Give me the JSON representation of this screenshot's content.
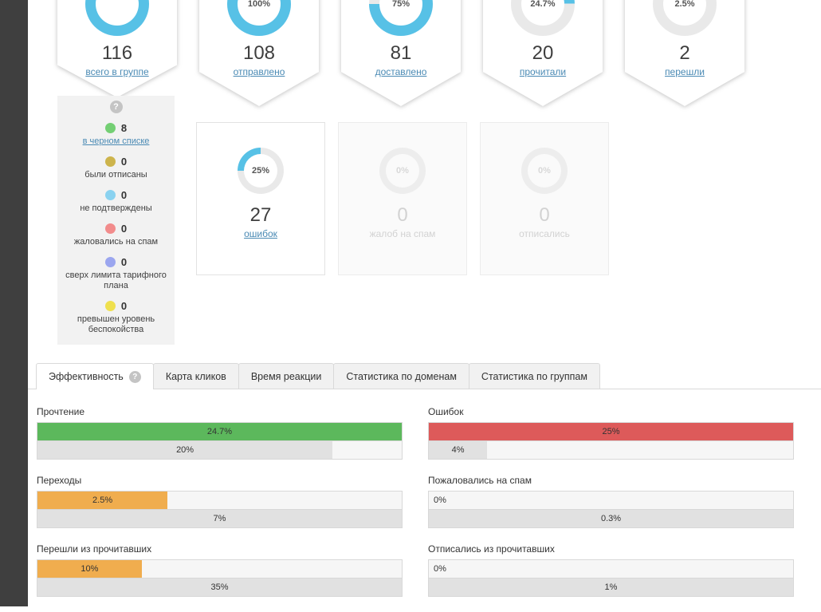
{
  "theme": {
    "accent_blue": "#57c1e6",
    "donut_track": "#e9e9e9",
    "donut_track_faded": "#ededed",
    "link_blue": "#4a8ab4",
    "bar_green": "#5cb85c",
    "bar_red": "#dd5a5a",
    "bar_orange": "#f0ad4e",
    "bar_gray": "#e1e1e1",
    "sidebar_strip": "#3f3f3f"
  },
  "funnel_cards": [
    {
      "percent": "",
      "value": "116",
      "label": "всего в группе",
      "fill_pct": 93,
      "reverse": false
    },
    {
      "percent": "100%",
      "value": "108",
      "label": "отправлено",
      "fill_pct": 100,
      "reverse": false
    },
    {
      "percent": "75%",
      "value": "81",
      "label": "доставлено",
      "fill_pct": 75,
      "reverse": false
    },
    {
      "percent": "24.7%",
      "value": "20",
      "label": "прочитали",
      "fill_pct": 24.7,
      "reverse": false
    },
    {
      "percent": "2.5%",
      "value": "2",
      "label": "перешли",
      "fill_pct": 2.5,
      "reverse": false
    }
  ],
  "legend": {
    "help_icon": "?",
    "items": [
      {
        "count": "8",
        "label": "в черном списке",
        "color": "#74cf74"
      },
      {
        "count": "0",
        "label": "были отписаны",
        "color": "#cdb44c"
      },
      {
        "count": "0",
        "label": "не подтверждены",
        "color": "#8ad2f0"
      },
      {
        "count": "0",
        "label": "жаловались на спам",
        "color": "#f28c8c"
      },
      {
        "count": "0",
        "label": "сверх лимита тарифного плана",
        "color": "#9ba6ef"
      },
      {
        "count": "0",
        "label": "превышен уровень беспокойства",
        "color": "#efe04e"
      }
    ]
  },
  "detail_cards": [
    {
      "percent": "25%",
      "value": "27",
      "label": "ошибок",
      "fill_pct": 25,
      "reverse": true
    },
    {
      "percent": "0%",
      "value": "0",
      "label": "жалоб на спам",
      "fill_pct": 0,
      "reverse": false
    },
    {
      "percent": "0%",
      "value": "0",
      "label": "отписались",
      "fill_pct": 0,
      "reverse": false
    }
  ],
  "tabs": [
    {
      "label": "Эффективность",
      "help_icon": "?"
    },
    {
      "label": "Карта кликов"
    },
    {
      "label": "Время реакции"
    },
    {
      "label": "Статистика по доменам"
    },
    {
      "label": "Статистика по группам"
    }
  ],
  "metrics": {
    "left": [
      {
        "label": "Прочтение",
        "value_text": "24.7%",
        "value_width": 100,
        "value_color": "green",
        "avg_text": "20%",
        "avg_width": 81
      },
      {
        "label": "Переходы",
        "value_text": "2.5%",
        "value_width": 35.7,
        "value_color": "orange",
        "avg_text": "7%",
        "avg_width": 100
      },
      {
        "label": "Перешли из прочитавших",
        "value_text": "10%",
        "value_width": 28.6,
        "value_color": "orange",
        "avg_text": "35%",
        "avg_width": 100
      }
    ],
    "right": [
      {
        "label": "Ошибок",
        "value_text": "25%",
        "value_width": 100,
        "value_color": "red",
        "avg_text": "4%",
        "avg_width": 16
      },
      {
        "label": "Пожаловались на спам",
        "value_text": "0%",
        "value_width": 0,
        "value_color": "red",
        "avg_text": "0.3%",
        "avg_width": 100
      },
      {
        "label": "Отписались из прочитавших",
        "value_text": "0%",
        "value_width": 0,
        "value_color": "orange",
        "avg_text": "1%",
        "avg_width": 100
      }
    ]
  }
}
